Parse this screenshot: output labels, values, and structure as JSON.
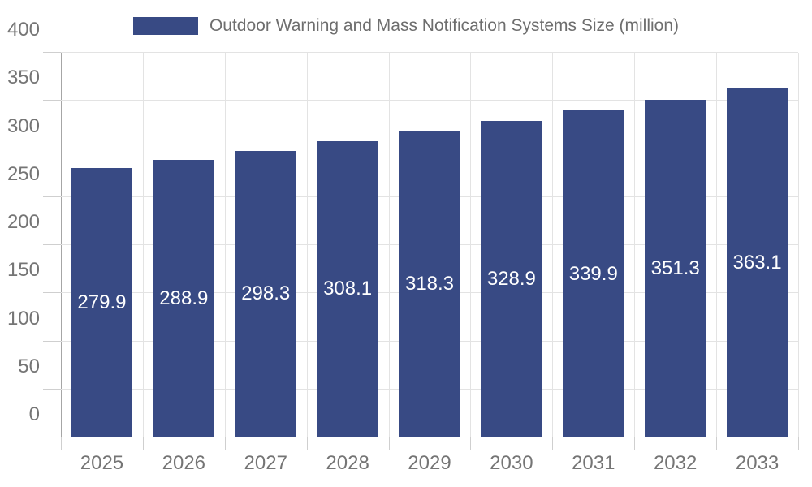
{
  "chart_data": {
    "type": "bar",
    "title": "Outdoor Warning and Mass Notification Systems Size (million)",
    "legend": {
      "position": "top",
      "label": "Outdoor Warning and Mass Notification Systems Size (million)"
    },
    "categories": [
      "2025",
      "2026",
      "2027",
      "2028",
      "2029",
      "2030",
      "2031",
      "2032",
      "2033"
    ],
    "values": [
      279.9,
      288.9,
      298.3,
      308.1,
      318.3,
      328.9,
      339.9,
      351.3,
      363.1
    ],
    "value_labels": [
      "279.9",
      "288.9",
      "298.3",
      "308.1",
      "318.3",
      "328.9",
      "339.9",
      "351.3",
      "363.1"
    ],
    "ytick_labels": [
      "0",
      "50",
      "100",
      "150",
      "200",
      "250",
      "300",
      "350",
      "400"
    ],
    "ylim": [
      0,
      400
    ],
    "ytick_step": 50,
    "grid": true,
    "bar_color": "#384A84",
    "bar_label_color": "#ffffff",
    "axis_color": "#a6a6a6",
    "grid_color": "#e3e3e3",
    "text_color": "#757575",
    "xlabel": "",
    "ylabel": ""
  }
}
